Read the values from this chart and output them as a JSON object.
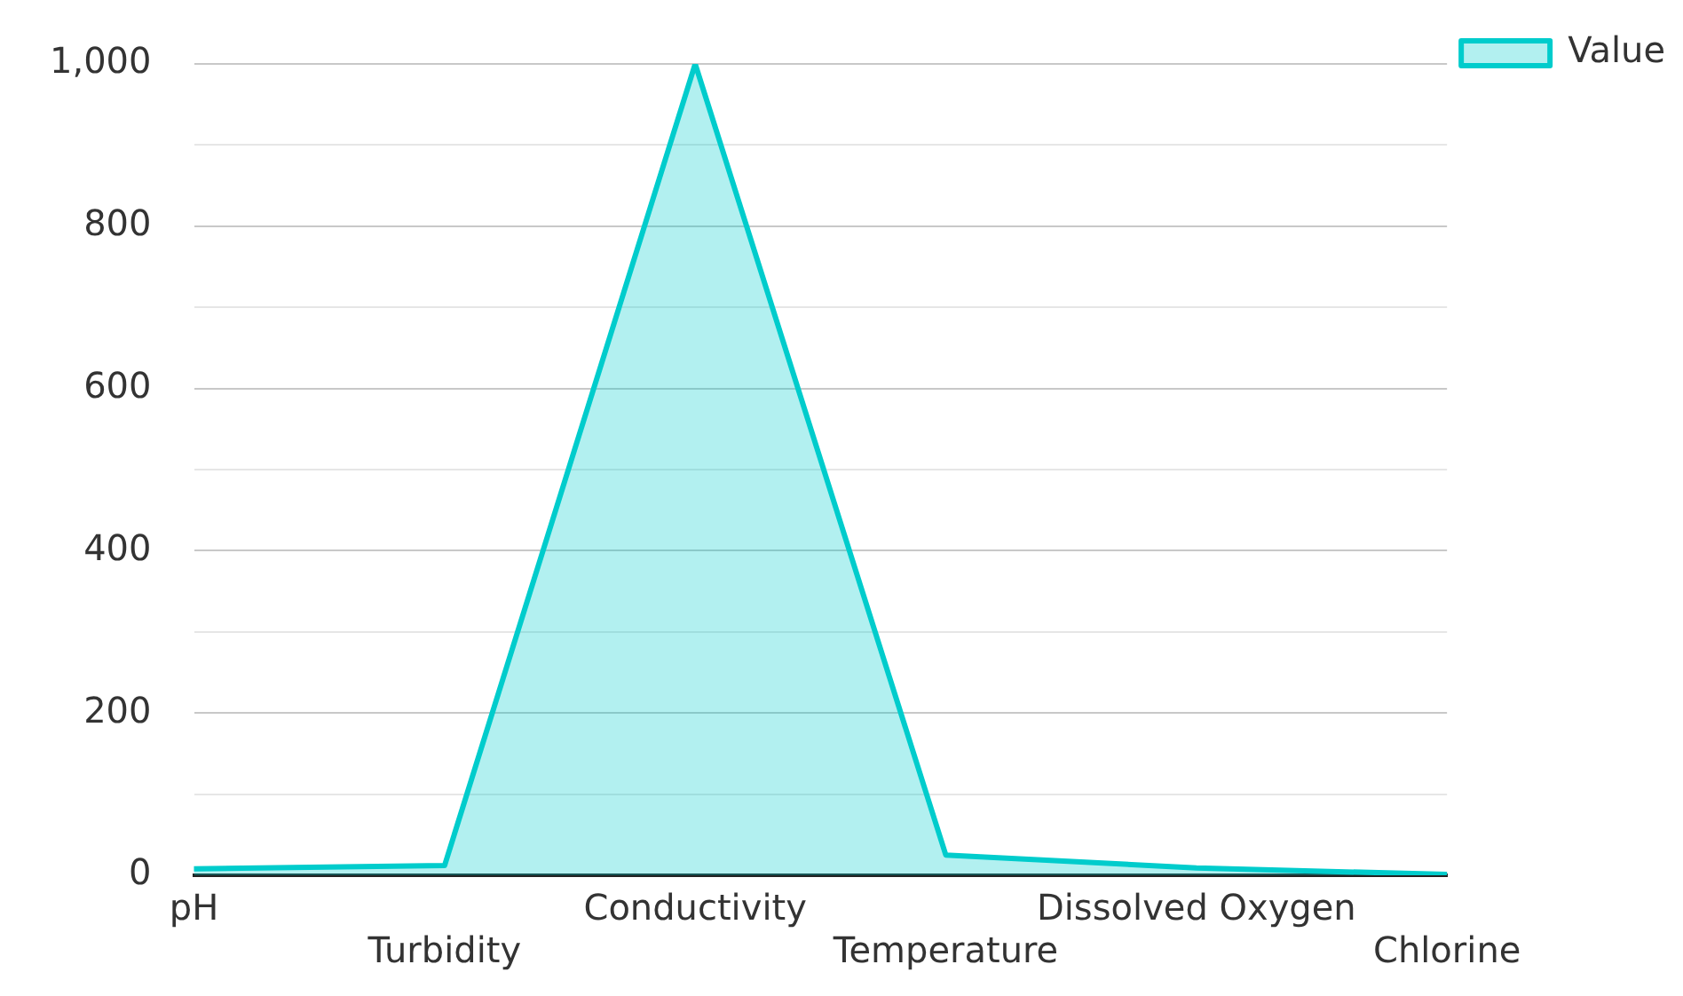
{
  "chart_data": {
    "type": "area",
    "categories": [
      "pH",
      "Turbidity",
      "Conductivity",
      "Temperature",
      "Dissolved Oxygen",
      "Chlorine"
    ],
    "series": [
      {
        "name": "Value",
        "color": "#00cccc",
        "values": [
          8,
          12,
          1000,
          25,
          9,
          1
        ]
      }
    ],
    "ylim": [
      0,
      1000
    ],
    "yticks": [
      0,
      {
        "value": 100,
        "label": null
      },
      200,
      {
        "value": 300,
        "label": null
      },
      400,
      {
        "value": 500,
        "label": null
      },
      600,
      {
        "value": 700,
        "label": null
      },
      800,
      {
        "value": 900,
        "label": null
      },
      {
        "value": 1000,
        "label": "1,000"
      }
    ],
    "grid": "y",
    "legend": "top right",
    "marker": "none",
    "line_style": "solid"
  }
}
